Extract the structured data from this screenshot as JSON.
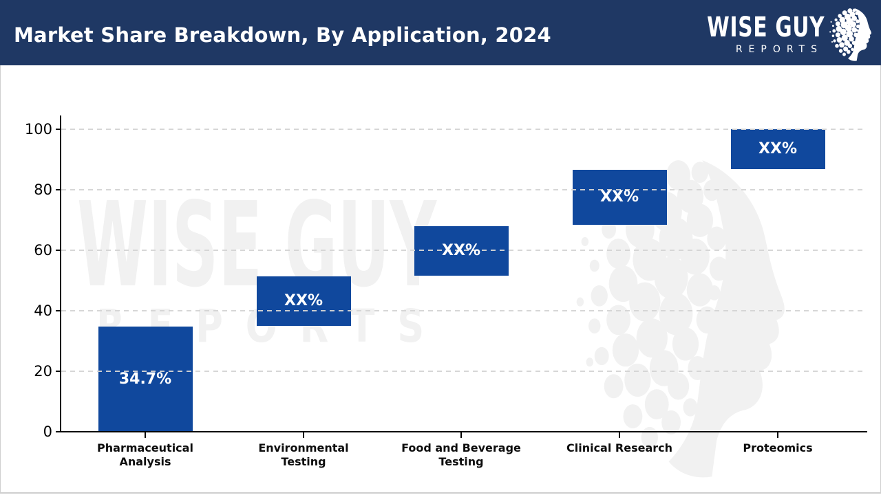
{
  "header": {
    "title": "Market Share Breakdown, By Application, 2024",
    "logo": {
      "line1": "WISE GUY",
      "line2": "REPORTS"
    }
  },
  "watermark": {
    "line1": "WISE GUY",
    "line2": "REPORTS"
  },
  "chart_data": {
    "type": "bar",
    "subtype": "floating-waterfall",
    "title": "Market Share Breakdown, By Application, 2024",
    "categories": [
      "Pharmaceutical Analysis",
      "Environmental Testing",
      "Food and Beverage Testing",
      "Clinical Research",
      "Proteomics"
    ],
    "category_label_lines": [
      [
        "Pharmaceutical",
        "Analysis"
      ],
      [
        "Environmental",
        "Testing"
      ],
      [
        "Food and Beverage",
        "Testing"
      ],
      [
        "Clinical Research"
      ],
      [
        "Proteomics"
      ]
    ],
    "segments": [
      {
        "category": "Pharmaceutical Analysis",
        "start": 0,
        "end": 34.7,
        "label": "34.7%"
      },
      {
        "category": "Environmental Testing",
        "start": 34.9,
        "end": 51.3,
        "label": "XX%"
      },
      {
        "category": "Food and Beverage Testing",
        "start": 51.6,
        "end": 68.0,
        "label": "XX%"
      },
      {
        "category": "Clinical Research",
        "start": 68.3,
        "end": 86.5,
        "label": "XX%"
      },
      {
        "category": "Proteomics",
        "start": 86.8,
        "end": 100,
        "label": "XX%"
      }
    ],
    "y_ticks": [
      0,
      20,
      40,
      60,
      80,
      100
    ],
    "ylim": [
      0,
      104
    ],
    "xlabel": "",
    "ylabel": "",
    "grid": "horizontal-dashed",
    "legend": "none",
    "colors": {
      "header_bg": "#1f3864",
      "bar": "#10489d",
      "bar_label": "#ffffff",
      "axis": "#000000",
      "gridline": "#d4d4d4",
      "watermark": "#f1f1f1"
    }
  }
}
